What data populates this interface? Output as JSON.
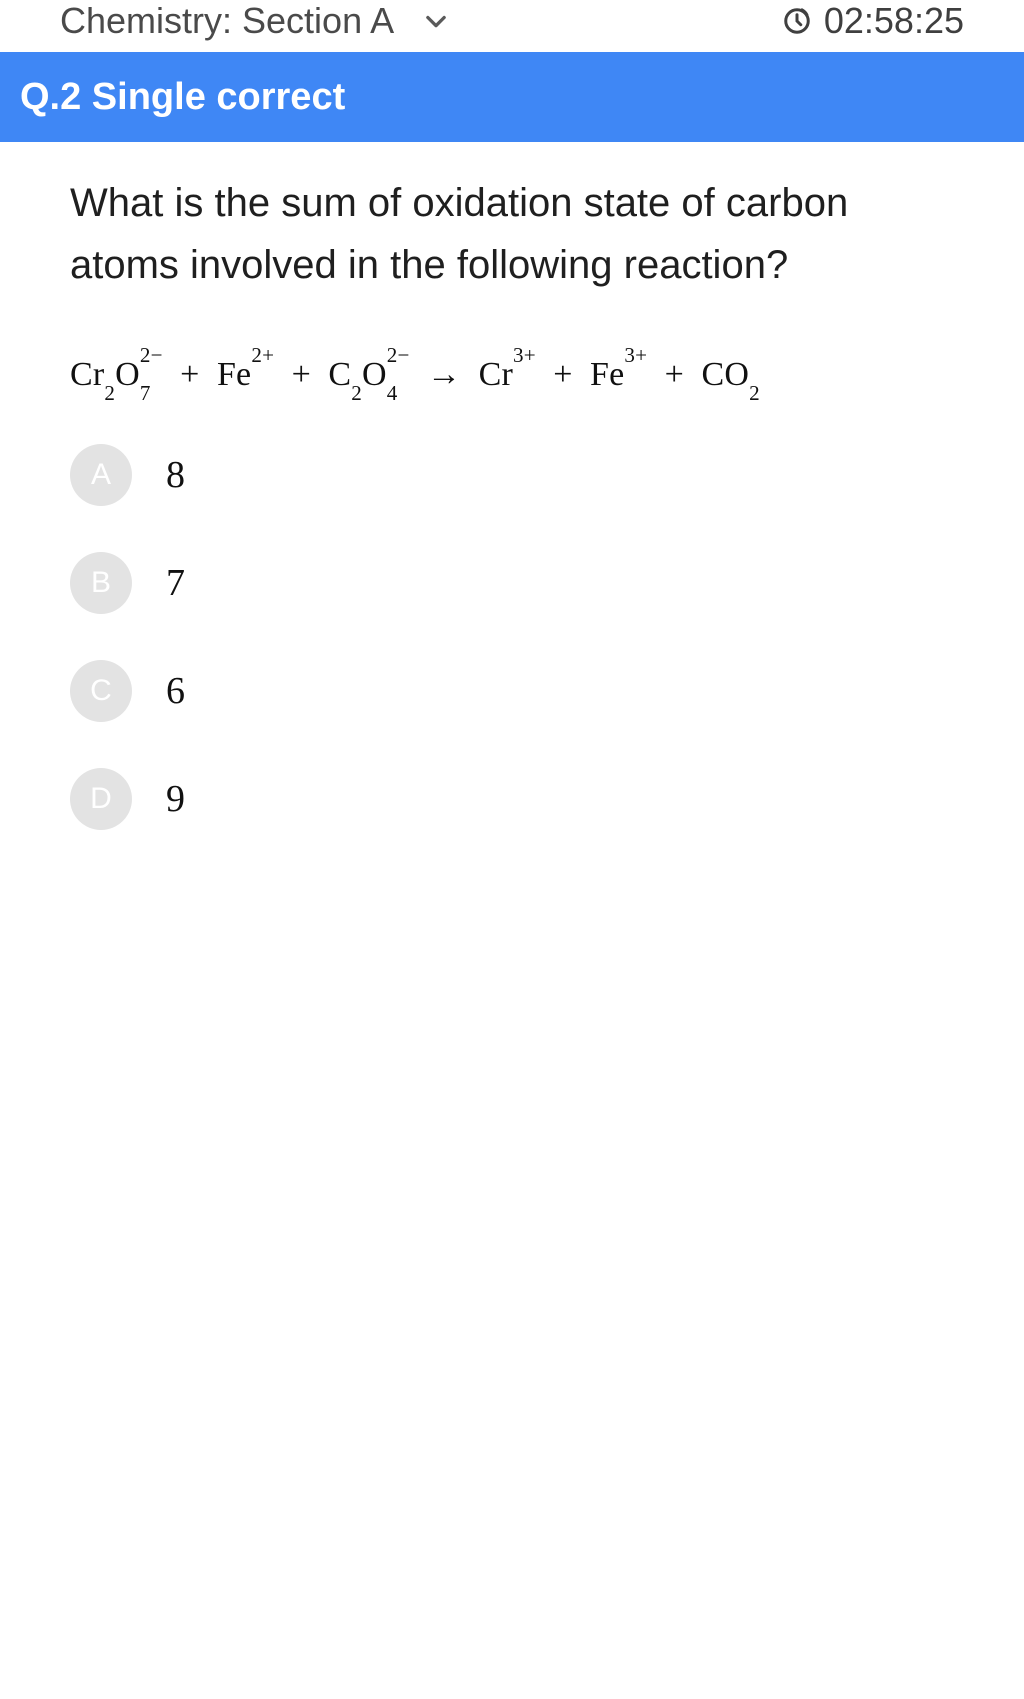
{
  "colors": {
    "header_bg": "#3f87f5",
    "option_badge_bg": "#e3e3e3",
    "topbar_text": "#4a4a4a",
    "body_text": "#1f1f1f",
    "page_bg": "#ffffff"
  },
  "top": {
    "section_label": "Chemistry: Section A",
    "timer": "02:58:25"
  },
  "question_header": "Q.2 Single correct",
  "question_text": "What is the sum of oxidation state of carbon atoms involved in the following reaction?",
  "equation": {
    "tokens": [
      {
        "t": "Cr",
        "sub": "2"
      },
      {
        "t": "O",
        "sub": "7",
        "sup": "2−"
      },
      {
        "plus": true
      },
      {
        "t": "Fe",
        "sup": "2+"
      },
      {
        "plus": true
      },
      {
        "t": "C",
        "sub": "2"
      },
      {
        "t": "O",
        "sub": "4",
        "sup": "2−"
      },
      {
        "arrow": true
      },
      {
        "t": "Cr",
        "sup": "3+"
      },
      {
        "plus": true
      },
      {
        "t": "Fe",
        "sup": "3+"
      },
      {
        "plus": true
      },
      {
        "t": "CO",
        "sub": "2"
      }
    ]
  },
  "options": [
    {
      "letter": "A",
      "value": "8"
    },
    {
      "letter": "B",
      "value": "7"
    },
    {
      "letter": "C",
      "value": "6"
    },
    {
      "letter": "D",
      "value": "9"
    }
  ]
}
